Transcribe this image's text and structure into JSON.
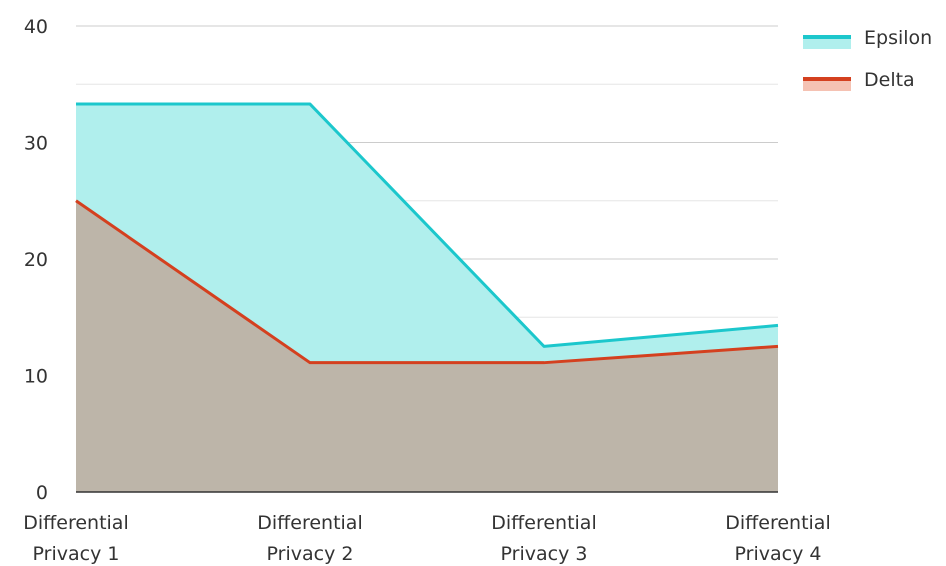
{
  "chart_data": {
    "type": "area",
    "categories": [
      [
        "Differential",
        "Privacy 1"
      ],
      [
        "Differential",
        "Privacy 2"
      ],
      [
        "Differential",
        "Privacy 3"
      ],
      [
        "Differential",
        "Privacy 4"
      ]
    ],
    "ylim": [
      0,
      40
    ],
    "yticks": [
      0,
      10,
      20,
      30,
      40
    ],
    "grid": true,
    "legend_position": "top-right",
    "series": [
      {
        "name": "Epsilon",
        "values": [
          33.3,
          33.3,
          12.5,
          14.3
        ],
        "line_color": "#1cc7cc",
        "fill_color": "#b0efed"
      },
      {
        "name": "Delta",
        "values": [
          25,
          11.1,
          11.1,
          12.5
        ],
        "line_color": "#d4401f",
        "fill_color": "#f5c2b3"
      }
    ],
    "overlap_fill_color": "#bdb5a9"
  }
}
